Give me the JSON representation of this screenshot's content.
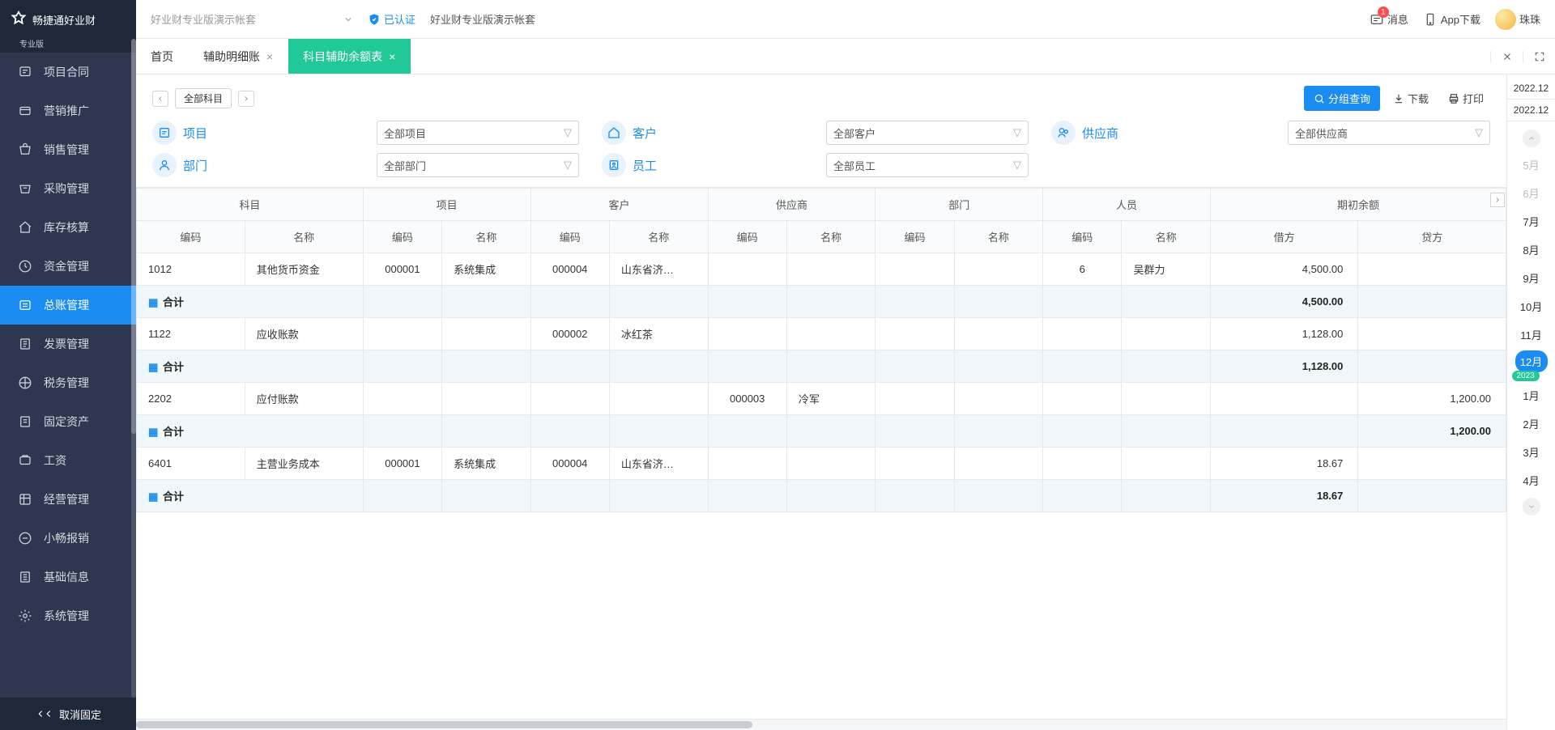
{
  "brand": {
    "name": "畅捷通好业财",
    "edition": "专业版"
  },
  "sidebar": {
    "items": [
      {
        "label": "项目合同",
        "active": false
      },
      {
        "label": "营销推广",
        "active": false
      },
      {
        "label": "销售管理",
        "active": false
      },
      {
        "label": "采购管理",
        "active": false
      },
      {
        "label": "库存核算",
        "active": false
      },
      {
        "label": "资金管理",
        "active": false
      },
      {
        "label": "总账管理",
        "active": true
      },
      {
        "label": "发票管理",
        "active": false
      },
      {
        "label": "税务管理",
        "active": false
      },
      {
        "label": "固定资产",
        "active": false
      },
      {
        "label": "工资",
        "active": false
      },
      {
        "label": "经营管理",
        "active": false
      },
      {
        "label": "小畅报销",
        "active": false
      },
      {
        "label": "基础信息",
        "active": false
      },
      {
        "label": "系统管理",
        "active": false
      }
    ],
    "footer": "取消固定"
  },
  "header": {
    "account_selector": "好业财专业版演示帐套",
    "verified": "已认证",
    "account_name": "好业财专业版演示帐套",
    "messages": "消息",
    "messages_badge": "1",
    "app_download": "App下载",
    "user": "珠珠"
  },
  "tabs": [
    {
      "label": "首页",
      "closable": false,
      "active": false
    },
    {
      "label": "辅助明细账",
      "closable": true,
      "active": false
    },
    {
      "label": "科目辅助余额表",
      "closable": true,
      "active": true
    }
  ],
  "toolbar": {
    "breadcrumb": "全部科目",
    "group_query": "分组查询",
    "download": "下载",
    "print": "打印"
  },
  "filters": {
    "project": {
      "label": "项目",
      "value": "全部项目"
    },
    "customer": {
      "label": "客户",
      "value": "全部客户"
    },
    "supplier": {
      "label": "供应商",
      "value": "全部供应商"
    },
    "department": {
      "label": "部门",
      "value": "全部部门"
    },
    "employee": {
      "label": "员工",
      "value": "全部员工"
    }
  },
  "table": {
    "group_headers": [
      "科目",
      "项目",
      "客户",
      "供应商",
      "部门",
      "人员",
      "期初余额"
    ],
    "sub_headers": [
      "编码",
      "名称",
      "编码",
      "名称",
      "编码",
      "名称",
      "编码",
      "名称",
      "编码",
      "名称",
      "编码",
      "名称",
      "借方",
      "贷方"
    ],
    "rows": [
      {
        "type": "data",
        "cells": [
          "1012",
          "其他货币资金",
          "000001",
          "系统集成",
          "000004",
          "山东省济…",
          "",
          "",
          "",
          "",
          "6",
          "吴群力",
          "4,500.00",
          ""
        ]
      },
      {
        "type": "subtotal",
        "label": "合计",
        "debit": "4,500.00",
        "credit": ""
      },
      {
        "type": "data",
        "cells": [
          "1122",
          "应收账款",
          "",
          "",
          "000002",
          "冰红茶",
          "",
          "",
          "",
          "",
          "",
          "",
          "1,128.00",
          ""
        ]
      },
      {
        "type": "subtotal",
        "label": "合计",
        "debit": "1,128.00",
        "credit": ""
      },
      {
        "type": "data",
        "cells": [
          "2202",
          "应付账款",
          "",
          "",
          "",
          "",
          "000003",
          "冷军",
          "",
          "",
          "",
          "",
          "",
          "1,200.00"
        ]
      },
      {
        "type": "subtotal",
        "label": "合计",
        "debit": "",
        "credit": "1,200.00"
      },
      {
        "type": "data",
        "cells": [
          "6401",
          "主营业务成本",
          "000001",
          "系统集成",
          "000004",
          "山东省济…",
          "",
          "",
          "",
          "",
          "",
          "",
          "18.67",
          ""
        ]
      },
      {
        "type": "subtotal",
        "label": "合计",
        "debit": "18.67",
        "credit": ""
      }
    ]
  },
  "periods": {
    "top1": "2022.12",
    "top2": "2022.12",
    "year_badge": "2023",
    "items": [
      {
        "label": "5月",
        "state": "disabled"
      },
      {
        "label": "6月",
        "state": "disabled"
      },
      {
        "label": "7月",
        "state": "normal"
      },
      {
        "label": "8月",
        "state": "normal"
      },
      {
        "label": "9月",
        "state": "normal"
      },
      {
        "label": "10月",
        "state": "normal"
      },
      {
        "label": "11月",
        "state": "normal"
      },
      {
        "label": "12月",
        "state": "active"
      },
      {
        "label": "1月",
        "state": "normal"
      },
      {
        "label": "2月",
        "state": "normal"
      },
      {
        "label": "3月",
        "state": "normal"
      },
      {
        "label": "4月",
        "state": "normal"
      }
    ]
  },
  "colors": {
    "sidebar_bg": "#2d3850",
    "sidebar_active": "#1b8cf2",
    "tab_active": "#20c997",
    "primary": "#1b8cf2",
    "border": "#e6e8eb"
  }
}
